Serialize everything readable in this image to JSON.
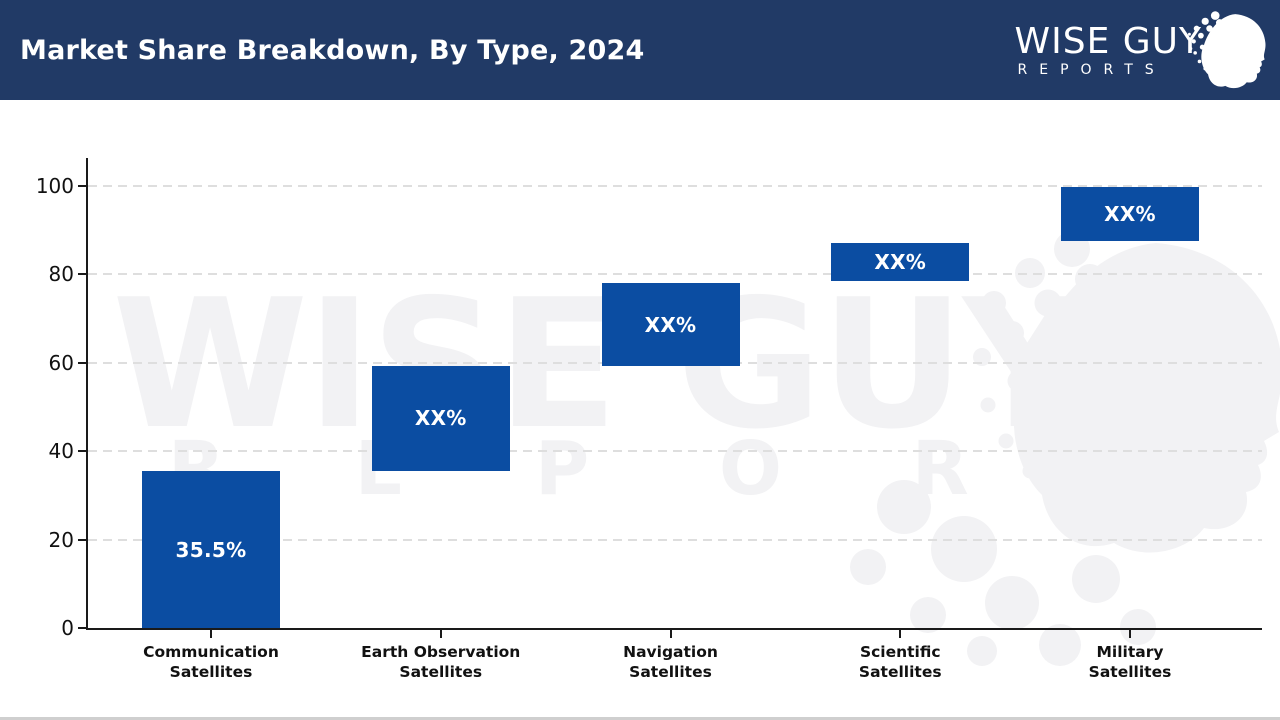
{
  "header": {
    "title": "Market Share Breakdown, By Type, 2024",
    "logo": {
      "line1": "WISE GUY",
      "line2": "REPORTS"
    }
  },
  "watermark": {
    "line1": "WISE GUY",
    "line2": "REPORTS"
  },
  "colors": {
    "header_bg": "#213a66",
    "bar": "#0b4da2",
    "bar_label": "#ffffff",
    "grid": "#dedede",
    "axis": "#1a1a1a",
    "watermark": "#f2f2f4",
    "bottom_border": "#cfcfcf"
  },
  "chart_data": {
    "type": "bar",
    "subtype": "waterfall",
    "title": "Market Share Breakdown, By Type, 2024",
    "categories": [
      [
        "Communication",
        "Satellites"
      ],
      [
        "Earth Observation",
        "Satellites"
      ],
      [
        "Navigation",
        "Satellites"
      ],
      [
        "Scientific",
        "Satellites"
      ],
      [
        "Military",
        "Satellites"
      ]
    ],
    "segments": [
      {
        "start": 0,
        "end": 35.5,
        "label": "35.5%"
      },
      {
        "start": 35.5,
        "end": 59.3,
        "label": "XX%"
      },
      {
        "start": 59.2,
        "end": 78.1,
        "label": "XX%"
      },
      {
        "start": 78.4,
        "end": 87.2,
        "label": "XX%"
      },
      {
        "start": 87.6,
        "end": 99.8,
        "label": "XX%"
      }
    ],
    "yticks": [
      0,
      20,
      40,
      60,
      80,
      100
    ],
    "ylim": [
      0,
      106
    ],
    "xlabel": "",
    "ylabel": "",
    "grid": "horizontal-dashed",
    "legend": "none"
  }
}
